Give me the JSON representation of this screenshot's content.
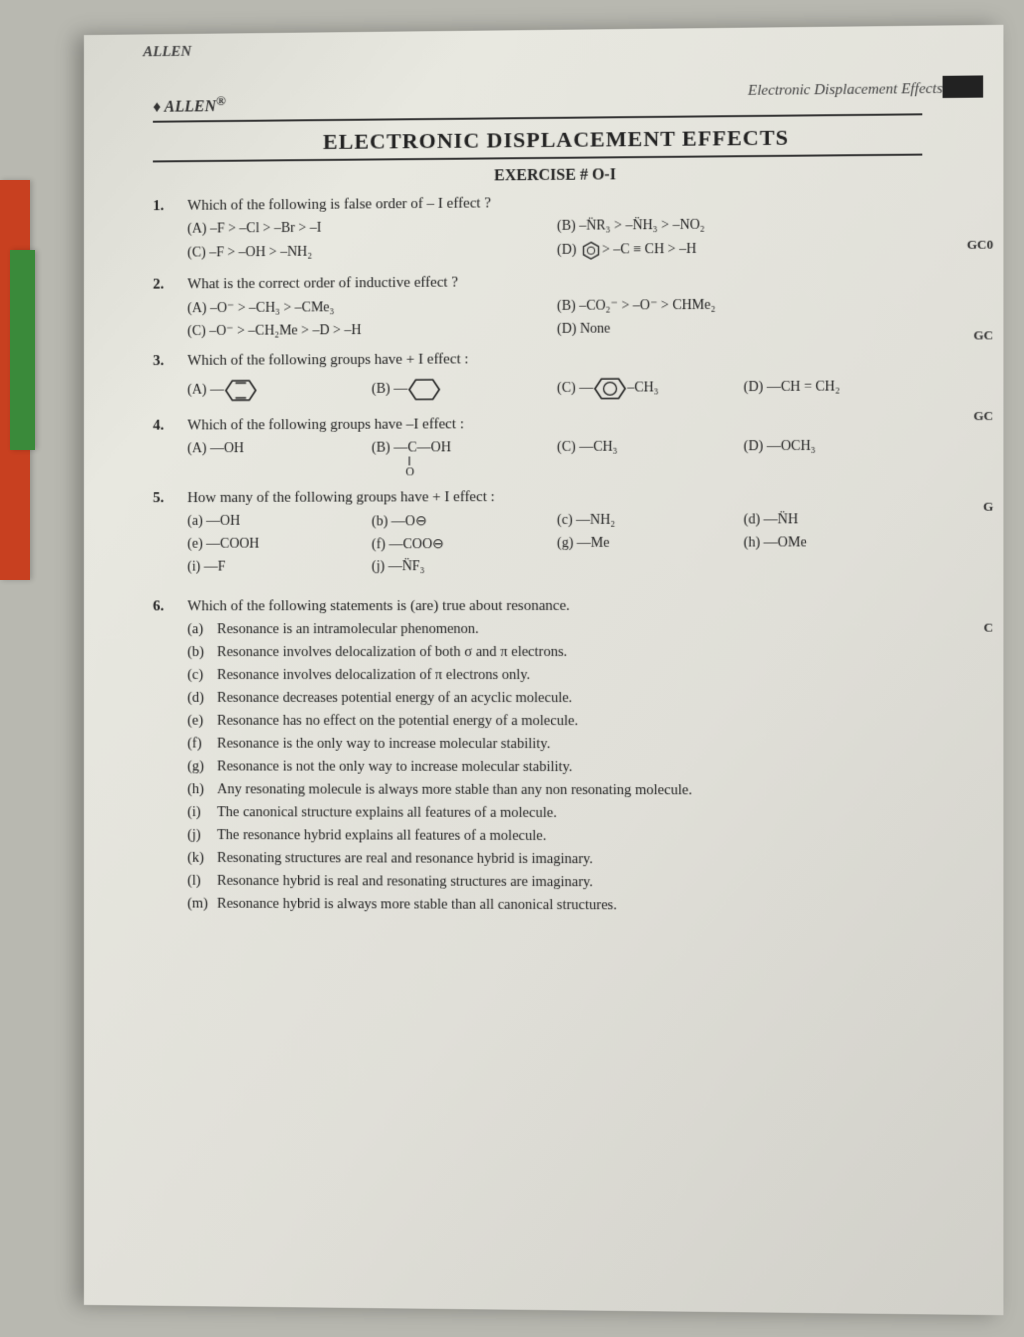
{
  "brand_top": "ALLEN",
  "brand": "ALLEN",
  "header_right": "Electronic Displacement Effects",
  "title": "ELECTRONIC DISPLACEMENT EFFECTS",
  "exercise": "EXERCISE # O-I",
  "edge_codes": [
    "GC0",
    "GC",
    "GC",
    "G",
    "C"
  ],
  "q1": {
    "num": "1.",
    "text": "Which of the following is false order of – I effect ?",
    "a": "(A) –F > –Cl > –Br > –I",
    "b": "(B) –N̈R₃ > –N̈H₃ > –NO₂",
    "c": "(C) –F > –OH > –NH₂",
    "d_prefix": "(D)",
    "d_suffix": " > –C ≡ CH > –H"
  },
  "q2": {
    "num": "2.",
    "text": "What is the correct order of inductive effect ?",
    "a": "(A) –O⁻ > –CH₃ > –CMe₃",
    "b": "(B) –CO₂⁻ > –O⁻ > CHMe₂",
    "c": "(C) –O⁻ > –CH₂Me > –D > –H",
    "d": "(D) None"
  },
  "q3": {
    "num": "3.",
    "text": "Which of the following groups have + I effect :",
    "a": "(A)",
    "b": "(B)",
    "c": "(C)",
    "c_suffix": "–CH₃",
    "d": "(D) —CH = CH₂"
  },
  "q4": {
    "num": "4.",
    "text": "Which of the following groups have –I effect :",
    "a": "(A) —OH",
    "b_prefix": "(B) —",
    "b_mid": "C",
    "b_suffix": "—OH",
    "b_under": "‖",
    "b_o": "O",
    "c": "(C) —CH₃",
    "d": "(D) —OCH₃"
  },
  "q5": {
    "num": "5.",
    "text": "How many of the following groups have + I effect :",
    "a": "(a) —OH",
    "b": "(b) —O⊖",
    "c": "(c) —NH₂",
    "d": "(d) —N̈H",
    "e": "(e) —COOH",
    "f": "(f) —COO⊖",
    "g": "(g) —Me",
    "h": "(h) —OMe",
    "i": "(i) —F",
    "j": "(j) —N̈F₃"
  },
  "q6": {
    "num": "6.",
    "text": "Which of the following statements is (are) true about resonance.",
    "stmts": [
      {
        "l": "(a)",
        "t": "Resonance is an intramolecular phenomenon."
      },
      {
        "l": "(b)",
        "t": "Resonance involves delocalization of both σ and π electrons."
      },
      {
        "l": "(c)",
        "t": "Resonance involves delocalization of π electrons only."
      },
      {
        "l": "(d)",
        "t": "Resonance decreases potential energy of an acyclic molecule."
      },
      {
        "l": "(e)",
        "t": "Resonance has no effect on the potential energy of a molecule."
      },
      {
        "l": "(f)",
        "t": "Resonance is the only way to increase molecular stability."
      },
      {
        "l": "(g)",
        "t": "Resonance is not the only way to increase molecular stability."
      },
      {
        "l": "(h)",
        "t": "Any resonating molecule is always more stable than any non resonating molecule."
      },
      {
        "l": "(i)",
        "t": "The canonical structure explains all features of a molecule."
      },
      {
        "l": "(j)",
        "t": "The resonance hybrid explains all features of a molecule."
      },
      {
        "l": "(k)",
        "t": "Resonating structures are real and resonance hybrid is imaginary."
      },
      {
        "l": "(l)",
        "t": "Resonance hybrid is real and resonating structures are imaginary."
      },
      {
        "l": "(m)",
        "t": "Resonance hybrid is always more stable than all canonical structures."
      }
    ]
  }
}
